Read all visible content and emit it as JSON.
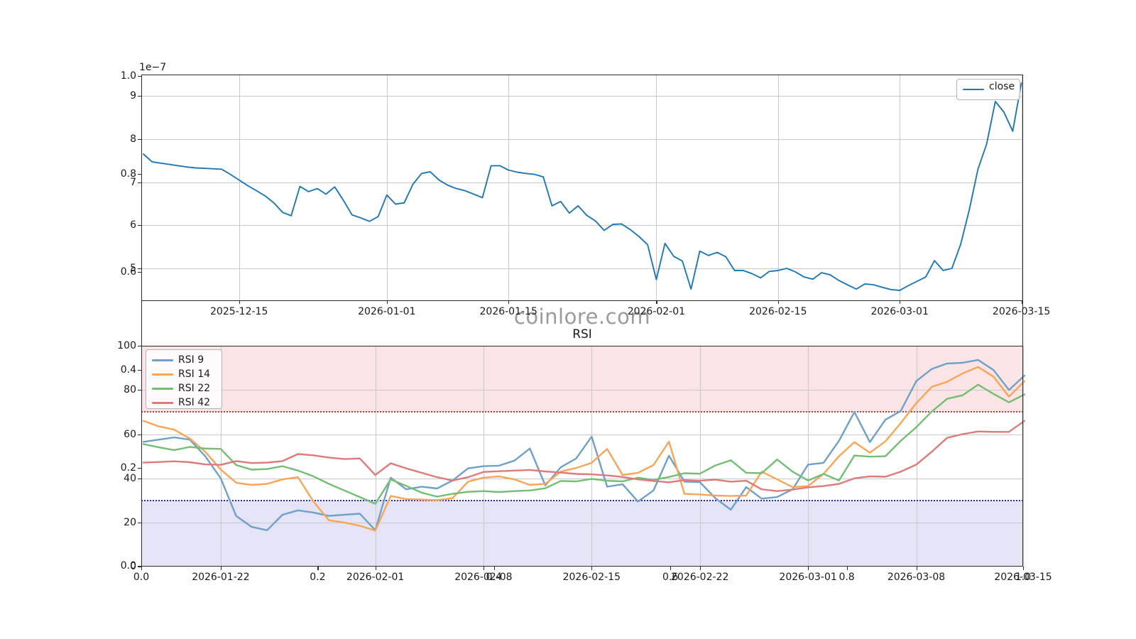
{
  "watermark": "coinlore.com",
  "colors": {
    "close": "#1f77b4",
    "rsi9": "#6fa1c8",
    "rsi14": "#f8a558",
    "rsi22": "#74bd74",
    "rsi42": "#dd7b7c",
    "overbought_line": "#d93030",
    "oversold_line": "#2727cc",
    "overbought_band": "#fbe4e6",
    "oversold_band": "#e4e4f6",
    "grid": "#c9c9c9"
  },
  "overlay_axis": {
    "x_ticks": [
      "0.0",
      "0.2",
      "0.4",
      "0.6",
      "0.8",
      "1.0"
    ],
    "x_tick_values": [
      0.0,
      0.2,
      0.4,
      0.6,
      0.8,
      1.0
    ],
    "y_ticks": [
      "1.0",
      "0.8",
      "0.6",
      "0.4",
      "0.2",
      "0.0"
    ],
    "y_tick_values": [
      1.0,
      0.8,
      0.6,
      0.4,
      0.2,
      0.0
    ]
  },
  "chart_data": [
    {
      "type": "line",
      "name": "price-chart",
      "offset_label": "1e−7",
      "value_scale": "1e-7",
      "x_tick_labels": [
        "2025-12-15",
        "2026-01-01",
        "2026-01-15",
        "2026-02-01",
        "2026-02-15",
        "2026-03-01",
        "2026-03-15"
      ],
      "y_tick_labels": [
        "9",
        "8",
        "7",
        "6",
        "5"
      ],
      "y_tick_values": [
        9,
        8,
        7,
        6,
        5
      ],
      "x_start": "2025-12-04",
      "x_end": "2026-03-15",
      "grid": true,
      "legend_position": "upper right",
      "series": [
        {
          "name": "close",
          "color_key": "close",
          "values": [
            7.65,
            7.47,
            7.44,
            7.41,
            7.38,
            7.35,
            7.33,
            7.32,
            7.31,
            7.3,
            7.18,
            7.05,
            6.92,
            6.8,
            6.68,
            6.52,
            6.3,
            6.22,
            6.9,
            6.78,
            6.85,
            6.72,
            6.89,
            6.58,
            6.24,
            6.17,
            6.09,
            6.2,
            6.7,
            6.49,
            6.52,
            6.95,
            7.2,
            7.24,
            7.05,
            6.93,
            6.85,
            6.8,
            6.72,
            6.64,
            7.38,
            7.38,
            7.28,
            7.23,
            7.2,
            7.18,
            7.12,
            6.45,
            6.55,
            6.28,
            6.45,
            6.23,
            6.1,
            5.88,
            6.02,
            6.03,
            5.9,
            5.74,
            5.55,
            4.74,
            5.58,
            5.28,
            5.17,
            4.52,
            5.4,
            5.3,
            5.37,
            5.27,
            4.95,
            4.95,
            4.88,
            4.78,
            4.93,
            4.95,
            5.0,
            4.92,
            4.8,
            4.75,
            4.9,
            4.85,
            4.72,
            4.62,
            4.52,
            4.64,
            4.62,
            4.56,
            4.51,
            4.49,
            4.6,
            4.7,
            4.8,
            5.18,
            4.95,
            5.0,
            5.55,
            6.35,
            7.3,
            7.88,
            8.87,
            8.62,
            8.18,
            9.3
          ]
        }
      ]
    },
    {
      "type": "line",
      "name": "rsi-chart",
      "title": "RSI",
      "x_tick_labels": [
        "2026-01-22",
        "2026-02-01",
        "2026-02-08",
        "2026-02-15",
        "2026-02-22",
        "2026-03-01",
        "2026-03-08",
        "2026-03-15"
      ],
      "y_tick_labels": [
        "100",
        "80",
        "60",
        "40",
        "20",
        "0"
      ],
      "y_tick_values": [
        100,
        80,
        60,
        40,
        20,
        0
      ],
      "ylim": [
        0,
        100
      ],
      "x_start": "2026-01-17",
      "x_end": "2026-03-15",
      "grid": true,
      "overbought_level": 70,
      "oversold_level": 30,
      "legend_position": "upper left",
      "series": [
        {
          "name": "RSI 9",
          "color_key": "rsi9",
          "values": [
            56.5,
            57.5,
            58.5,
            57.5,
            50,
            40,
            23,
            18,
            16.5,
            23.5,
            25.5,
            24.5,
            23,
            23.5,
            24,
            16.5,
            40.3,
            35,
            36.2,
            35.4,
            39,
            44.5,
            45.5,
            45.7,
            48,
            53.5,
            36.8,
            45,
            49,
            58.9,
            36.2,
            37.3,
            29.5,
            34.5,
            50.2,
            38.5,
            38.3,
            31,
            25.8,
            36,
            30.8,
            31.5,
            35,
            46.2,
            47,
            57,
            70,
            56.4,
            66.5,
            70.5,
            84,
            89.5,
            92,
            92.3,
            93.6,
            89,
            80,
            86.5
          ]
        },
        {
          "name": "RSI 14",
          "color_key": "rsi14",
          "values": [
            66,
            63.5,
            62,
            58,
            52,
            44,
            38,
            37,
            37.5,
            39.5,
            40.5,
            29.5,
            21,
            20,
            18.5,
            16.3,
            32,
            30.6,
            30.4,
            30.1,
            31,
            38.5,
            40.3,
            40.9,
            39.5,
            37,
            37.5,
            43,
            44.7,
            47,
            53.3,
            41.5,
            42.5,
            46,
            56.6,
            33,
            32.7,
            32.2,
            32,
            32.2,
            43,
            39.5,
            36,
            36.5,
            42,
            50,
            56.4,
            51.6,
            56.7,
            65,
            74,
            81.4,
            83.7,
            87.5,
            90.4,
            86,
            77,
            84
          ]
        },
        {
          "name": "RSI 22",
          "color_key": "rsi22",
          "values": [
            55.5,
            54,
            52.8,
            54.2,
            53.5,
            53.3,
            46,
            43.9,
            44.2,
            45.5,
            43.5,
            40.9,
            37.5,
            34.5,
            31.5,
            28.5,
            39.5,
            36.6,
            33.5,
            31.7,
            33,
            33.9,
            34.2,
            33.8,
            34.2,
            34.5,
            35.5,
            38.8,
            38.6,
            39.7,
            38.9,
            38.6,
            40.3,
            39.3,
            40.6,
            42.3,
            42.1,
            45.8,
            48.2,
            42.5,
            42.3,
            48.5,
            43,
            39,
            42,
            39,
            50.3,
            49.8,
            50,
            57,
            63.1,
            70.2,
            76,
            77.6,
            82.4,
            78.2,
            74.4,
            78
          ]
        },
        {
          "name": "RSI 42",
          "color_key": "rsi42",
          "values": [
            47.1,
            47.4,
            47.7,
            47.3,
            46.3,
            46.1,
            47.8,
            46.9,
            47.1,
            47.8,
            51,
            50.4,
            49.4,
            48.7,
            49,
            41.5,
            46.8,
            44.5,
            42.5,
            40.5,
            39,
            40.5,
            42.9,
            43.2,
            43.5,
            43.8,
            43.1,
            42.6,
            42,
            41.8,
            41.3,
            40.6,
            39.5,
            38.8,
            38.2,
            39.2,
            38.9,
            39.4,
            38.5,
            38.9,
            35,
            34.2,
            34.9,
            35.9,
            36.5,
            37.5,
            40,
            40.9,
            40.7,
            43,
            46.2,
            52,
            58.3,
            60,
            61.2,
            61,
            61,
            66
          ]
        }
      ]
    }
  ]
}
